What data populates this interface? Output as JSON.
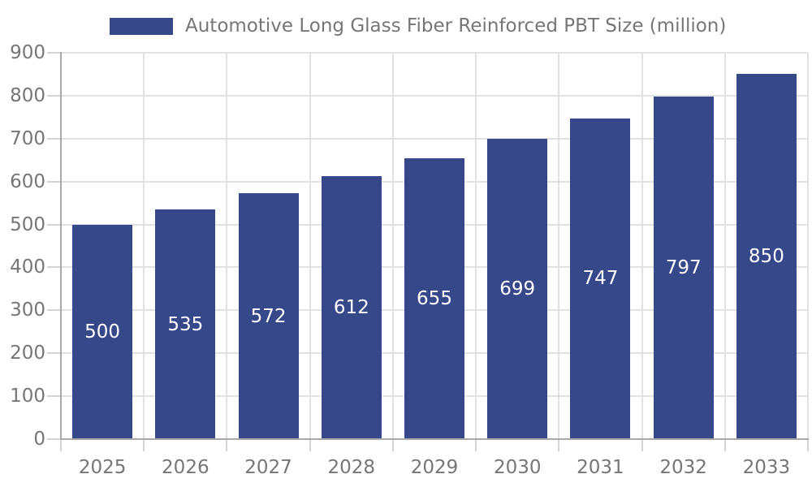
{
  "chart_data": {
    "type": "bar",
    "title": "Automotive Long Glass Fiber Reinforced PBT Size (million)",
    "categories": [
      "2025",
      "2026",
      "2027",
      "2028",
      "2029",
      "2030",
      "2031",
      "2032",
      "2033"
    ],
    "values": [
      500,
      535,
      572,
      612,
      655,
      699,
      747,
      797,
      850
    ],
    "xlabel": "",
    "ylabel": "",
    "ylim": [
      0,
      900
    ],
    "yticks": [
      0,
      100,
      200,
      300,
      400,
      500,
      600,
      700,
      800,
      900
    ],
    "grid": true,
    "legend_position": "top",
    "value_label_position": "inside-center",
    "colors": {
      "bar": "#36478a",
      "bar_label": "#ffffff",
      "axis_text": "#767676",
      "legend_text": "#767676",
      "grid_line": "#e2e2e2",
      "axis_line": "#a9a9a9",
      "tick_mark": "#d4d4d4",
      "background": "#ffffff"
    }
  }
}
